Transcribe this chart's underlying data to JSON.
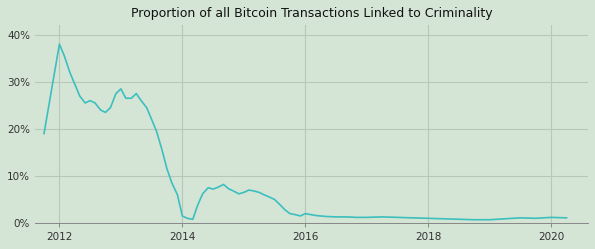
{
  "title": "Proportion of all Bitcoin Transactions Linked to Criminality",
  "background_color": "#d5e5d5",
  "line_color": "#3bbfbf",
  "line_width": 1.2,
  "xlim": [
    2011.6,
    2020.6
  ],
  "ylim": [
    0,
    0.42
  ],
  "xticks": [
    2012,
    2014,
    2016,
    2018,
    2020
  ],
  "yticks": [
    0,
    0.1,
    0.2,
    0.3,
    0.4
  ],
  "ytick_labels": [
    "0%",
    "10%",
    "20%",
    "30%",
    "40%"
  ],
  "grid_color": "#b8c8b8",
  "grid_linewidth": 0.8,
  "title_fontsize": 9.0,
  "tick_fontsize": 7.5,
  "x": [
    2011.75,
    2012.0,
    2012.08,
    2012.17,
    2012.25,
    2012.33,
    2012.42,
    2012.5,
    2012.58,
    2012.67,
    2012.75,
    2012.83,
    2012.92,
    2013.0,
    2013.08,
    2013.17,
    2013.25,
    2013.33,
    2013.42,
    2013.5,
    2013.58,
    2013.67,
    2013.75,
    2013.83,
    2013.92,
    2014.0,
    2014.08,
    2014.17,
    2014.25,
    2014.33,
    2014.42,
    2014.5,
    2014.58,
    2014.67,
    2014.75,
    2014.83,
    2014.92,
    2015.0,
    2015.08,
    2015.17,
    2015.25,
    2015.33,
    2015.42,
    2015.5,
    2015.58,
    2015.67,
    2015.75,
    2015.83,
    2015.92,
    2016.0,
    2016.17,
    2016.33,
    2016.5,
    2016.67,
    2016.83,
    2017.0,
    2017.25,
    2017.5,
    2017.75,
    2018.0,
    2018.25,
    2018.5,
    2018.75,
    2019.0,
    2019.25,
    2019.5,
    2019.75,
    2020.0,
    2020.25
  ],
  "y": [
    0.19,
    0.38,
    0.355,
    0.32,
    0.295,
    0.27,
    0.255,
    0.26,
    0.255,
    0.24,
    0.235,
    0.245,
    0.275,
    0.285,
    0.265,
    0.265,
    0.275,
    0.26,
    0.245,
    0.22,
    0.195,
    0.155,
    0.115,
    0.085,
    0.06,
    0.015,
    0.01,
    0.008,
    0.038,
    0.062,
    0.075,
    0.072,
    0.076,
    0.082,
    0.073,
    0.068,
    0.062,
    0.065,
    0.07,
    0.068,
    0.065,
    0.06,
    0.055,
    0.05,
    0.04,
    0.028,
    0.02,
    0.018,
    0.015,
    0.02,
    0.016,
    0.014,
    0.013,
    0.013,
    0.012,
    0.012,
    0.013,
    0.012,
    0.011,
    0.01,
    0.009,
    0.008,
    0.007,
    0.007,
    0.009,
    0.011,
    0.01,
    0.012,
    0.011
  ]
}
